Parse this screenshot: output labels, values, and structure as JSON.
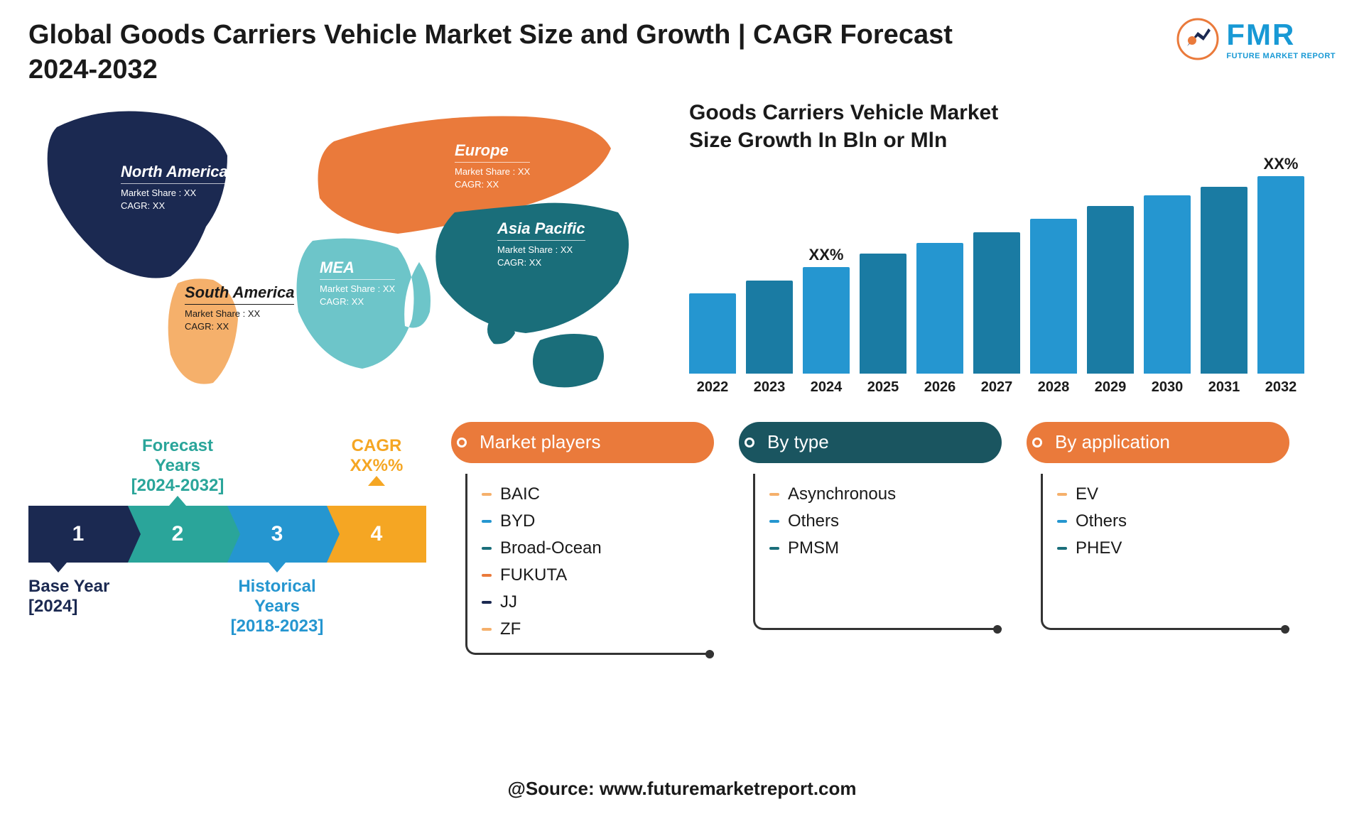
{
  "title": "Global Goods Carriers Vehicle  Market Size and Growth | CAGR Forecast 2024-2032",
  "logo": {
    "main": "FMR",
    "sub": "FUTURE MARKET REPORT"
  },
  "colors": {
    "na": "#1b2951",
    "sa": "#f5b06b",
    "mea": "#6dc5c9",
    "eu": "#ea7a3b",
    "ap": "#1a6e7a",
    "bar1": "#2596d0",
    "bar2": "#1a7ba3",
    "tl1": "#1b2951",
    "tl2": "#2aa59a",
    "tl3": "#2596d0",
    "tl4": "#f5a623",
    "pill_players": "#ea7a3b",
    "pill_type": "#1a5560",
    "pill_app": "#ea7a3b"
  },
  "regions": {
    "na": {
      "name": "North America",
      "share": "Market Share : XX",
      "cagr": "CAGR: XX"
    },
    "sa": {
      "name": "South America",
      "share": "Market Share : XX",
      "cagr": "CAGR: XX"
    },
    "mea": {
      "name": "MEA",
      "share": "Market Share : XX",
      "cagr": "CAGR: XX"
    },
    "eu": {
      "name": "Europe",
      "share": "Market Share : XX",
      "cagr": "CAGR: XX"
    },
    "ap": {
      "name": "Asia Pacific",
      "share": "Market Share : XX",
      "cagr": "CAGR: XX"
    }
  },
  "chart": {
    "title": "Goods Carriers Vehicle Market Size Growth In Bln or Mln",
    "years": [
      "2022",
      "2023",
      "2024",
      "2025",
      "2026",
      "2027",
      "2028",
      "2029",
      "2030",
      "2031",
      "2032"
    ],
    "values": [
      150,
      175,
      200,
      225,
      245,
      265,
      290,
      315,
      335,
      350,
      370
    ],
    "max": 400,
    "colors": [
      "#2596d0",
      "#1a7ba3",
      "#2596d0",
      "#1a7ba3",
      "#2596d0",
      "#1a7ba3",
      "#2596d0",
      "#1a7ba3",
      "#2596d0",
      "#1a7ba3",
      "#2596d0"
    ],
    "annotations": {
      "2": "XX%",
      "10": "XX%"
    }
  },
  "timeline": {
    "top": [
      {
        "label": "Forecast Years",
        "sub": "[2024-2032]",
        "color": "#2aa59a",
        "seg": 1
      },
      {
        "label": "CAGR",
        "sub": "XX%%",
        "color": "#f5a623",
        "seg": 3
      }
    ],
    "segments": [
      {
        "n": "1",
        "bg": "#1b2951"
      },
      {
        "n": "2",
        "bg": "#2aa59a"
      },
      {
        "n": "3",
        "bg": "#2596d0"
      },
      {
        "n": "4",
        "bg": "#f5a623"
      }
    ],
    "bottom": [
      {
        "label": "Base Year",
        "sub": "[2024]",
        "color": "#1b2951",
        "seg": 0
      },
      {
        "label": "Historical Years",
        "sub": "[2018-2023]",
        "color": "#2596d0",
        "seg": 2
      }
    ]
  },
  "categories": [
    {
      "title": "Market players",
      "pill_bg": "#ea7a3b",
      "items": [
        {
          "t": "BAIC",
          "c": "#f5b06b"
        },
        {
          "t": "BYD",
          "c": "#2596d0"
        },
        {
          "t": "Broad-Ocean",
          "c": "#1a6e7a"
        },
        {
          "t": "FUKUTA",
          "c": "#ea7a3b"
        },
        {
          "t": "JJ",
          "c": "#1b2951"
        },
        {
          "t": "ZF",
          "c": "#f5b06b"
        }
      ]
    },
    {
      "title": "By type",
      "pill_bg": "#1a5560",
      "items": [
        {
          "t": "Asynchronous",
          "c": "#f5b06b"
        },
        {
          "t": "Others",
          "c": "#2596d0"
        },
        {
          "t": "PMSM",
          "c": "#1a6e7a"
        }
      ]
    },
    {
      "title": "By application",
      "pill_bg": "#ea7a3b",
      "items": [
        {
          "t": "EV",
          "c": "#f5b06b"
        },
        {
          "t": "Others",
          "c": "#2596d0"
        },
        {
          "t": "PHEV",
          "c": "#1a6e7a"
        }
      ]
    }
  ],
  "source": "@Source: www.futuremarketreport.com"
}
